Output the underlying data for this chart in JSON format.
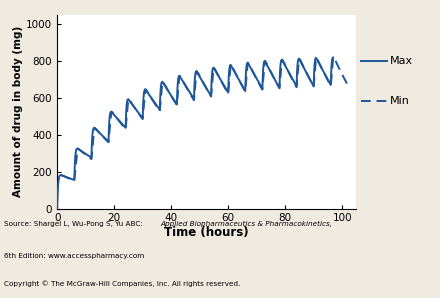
{
  "xlabel": "Time (hours)",
  "ylabel": "Amount of drug in body (mg)",
  "xlim": [
    0,
    105
  ],
  "ylim": [
    0,
    1050
  ],
  "xticks": [
    0,
    20,
    40,
    60,
    80,
    100
  ],
  "yticks": [
    0,
    200,
    400,
    600,
    800,
    1000
  ],
  "line_color": "#1e5799",
  "dose_interval": 6,
  "num_doses": 17,
  "ka": 3.5,
  "ke": 0.042,
  "dose_scale": 820.0,
  "source_line1": "Source: Shargel L, Wu-Pong S, Yu ABC: ",
  "source_italic": "Applied Biopharmaceutics & Pharmacokinetics,",
  "source_line2": "6th Edition: www.accesspharmacy.com",
  "copyright_text": "Copyright © The McGraw-Hill Companies, Inc. All rights reserved.",
  "legend_max": "Max",
  "legend_min": "Min",
  "bg_color": "#f0ebe0",
  "plot_bg": "#ffffff"
}
